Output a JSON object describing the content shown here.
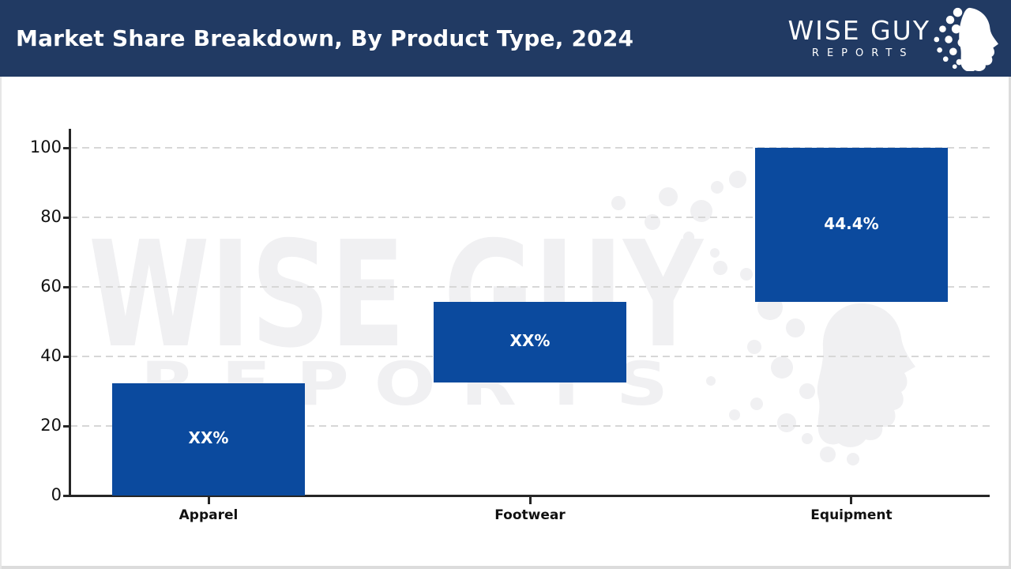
{
  "header": {
    "title": "Market Share Breakdown, By Product Type, 2024",
    "logo": {
      "primary": "WISE GUY",
      "secondary": "REPORTS"
    }
  },
  "watermark": {
    "line1": "WISE GUY",
    "line2": "R E P O R T S"
  },
  "chart_data": {
    "type": "bar",
    "variant": "waterfall",
    "title": "Market Share Breakdown, By Product Type, 2024",
    "categories": [
      "Apparel",
      "Footwear",
      "Equipment"
    ],
    "segments": [
      {
        "category": "Apparel",
        "start": 0,
        "end": 32.4,
        "value": 32.4,
        "label": "XX%"
      },
      {
        "category": "Footwear",
        "start": 32.4,
        "end": 55.6,
        "value": 23.2,
        "label": "XX%"
      },
      {
        "category": "Equipment",
        "start": 55.6,
        "end": 100,
        "value": 44.4,
        "label": "44.4%"
      }
    ],
    "y_ticks": [
      0,
      20,
      40,
      60,
      80,
      100
    ],
    "ylim": [
      0,
      105.5
    ],
    "xlabel": "",
    "ylabel": "",
    "legend": "none",
    "grid": "horizontal-dashed",
    "colors": {
      "bar": "#0b4a9e",
      "header_bg": "#213a63",
      "grid": "#d7d7d7",
      "axis": "#262626",
      "tick_text": "#111111",
      "bar_label_text": "#ffffff",
      "watermark": "#f0f0f2"
    }
  }
}
